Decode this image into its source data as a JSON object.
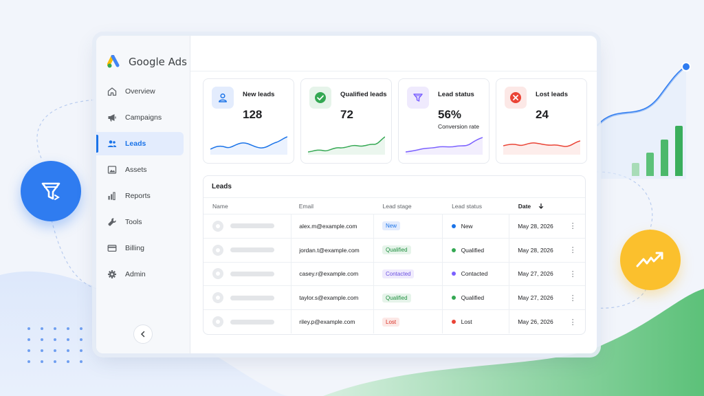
{
  "app": {
    "brand_name": "Google Ads"
  },
  "sidebar": {
    "items": [
      {
        "label": "Overview",
        "icon": "home-icon",
        "active": false
      },
      {
        "label": "Campaigns",
        "icon": "megaphone-icon",
        "active": false
      },
      {
        "label": "Leads",
        "icon": "people-icon",
        "active": true
      },
      {
        "label": "Assets",
        "icon": "image-icon",
        "active": false
      },
      {
        "label": "Reports",
        "icon": "bar-chart-icon",
        "active": false
      },
      {
        "label": "Tools",
        "icon": "wrench-icon",
        "active": false
      },
      {
        "label": "Billing",
        "icon": "credit-card-icon",
        "active": false
      },
      {
        "label": "Admin",
        "icon": "gear-icon",
        "active": false
      }
    ],
    "collapse_icon": "chevron-left-icon"
  },
  "cards": [
    {
      "label": "New leads",
      "value": "128",
      "sub": "",
      "icon": "person-icon",
      "color": "#1a73e8",
      "bg": "#e3ecfd"
    },
    {
      "label": "Qualified leads",
      "value": "72",
      "sub": "",
      "icon": "check-circle-icon",
      "color": "#34a853",
      "bg": "#e6f4ea"
    },
    {
      "label": "Lead status",
      "value": "56%",
      "sub": "Conversion rate",
      "icon": "funnel-icon",
      "color": "#7b61ff",
      "bg": "#efeafd"
    },
    {
      "label": "Lost leads",
      "value": "24",
      "sub": "",
      "icon": "x-circle-icon",
      "color": "#ea4335",
      "bg": "#fce8e6"
    }
  ],
  "leads_table": {
    "title": "Leads",
    "columns": [
      "Name",
      "Email",
      "Lead stage",
      "Lead status",
      "Date"
    ],
    "sort_icon": "arrow-down-icon",
    "rows": [
      {
        "email": "alex.m@example.com",
        "stage": "New",
        "status": "New",
        "date": "May 28, 2026",
        "stage_color": "#1a73e8",
        "stage_bg": "#e3ecfd",
        "status_color": "#1a73e8"
      },
      {
        "email": "jordan.t@example.com",
        "stage": "Qualified",
        "status": "Qualified",
        "date": "May 28, 2026",
        "stage_color": "#1e8e3e",
        "stage_bg": "#e6f4ea",
        "status_color": "#34a853"
      },
      {
        "email": "casey.r@example.com",
        "stage": "Contacted",
        "status": "Contacted",
        "date": "May 27, 2026",
        "stage_color": "#6a4fe0",
        "stage_bg": "#efeafd",
        "status_color": "#7b61ff"
      },
      {
        "email": "taylor.s@example.com",
        "stage": "Qualified",
        "status": "Qualified",
        "date": "May 27, 2026",
        "stage_color": "#1e8e3e",
        "stage_bg": "#e6f4ea",
        "status_color": "#34a853"
      },
      {
        "email": "riley.p@example.com",
        "stage": "Lost",
        "status": "Lost",
        "date": "May 26, 2026",
        "stage_color": "#d93025",
        "stage_bg": "#fce8e6",
        "status_color": "#ea4335"
      }
    ]
  },
  "decor": {
    "left_bubble_icon": "funnel-icon",
    "right_bubble_icon": "trending-up-icon",
    "accent_blue": "#2f7cf0",
    "accent_yellow": "#fbc02d",
    "accent_green": "#34a853"
  }
}
